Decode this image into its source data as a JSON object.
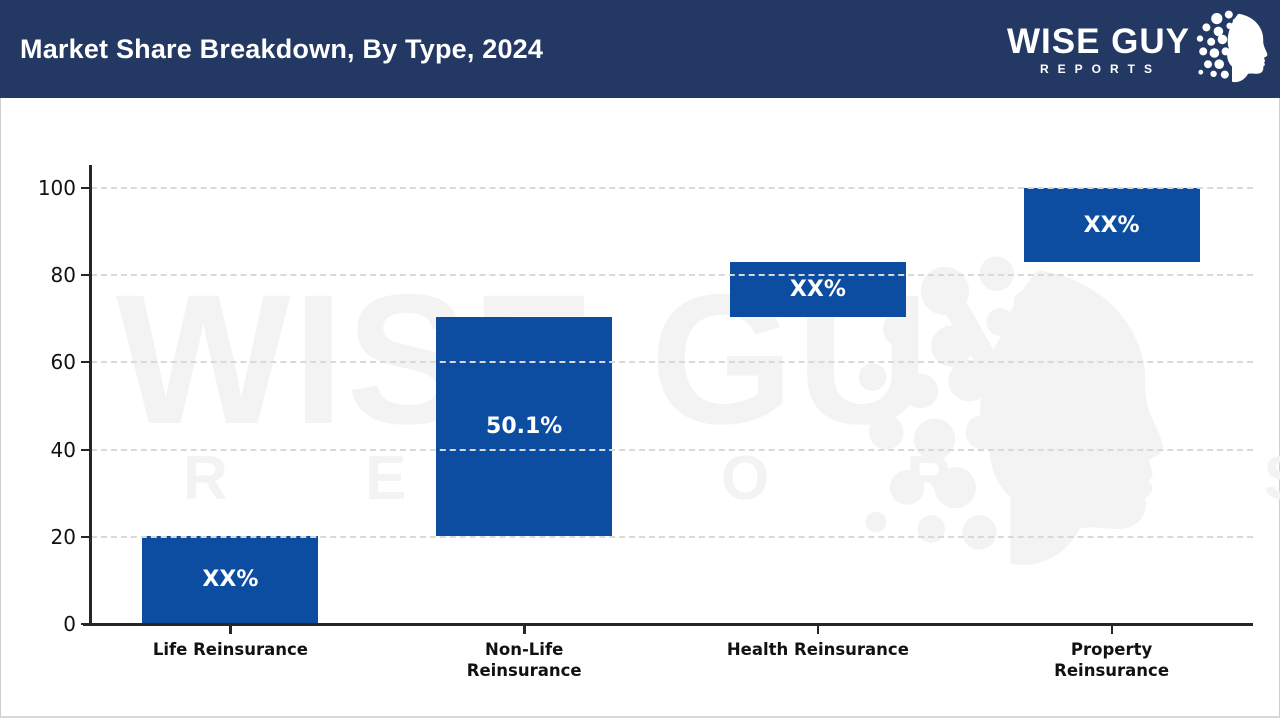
{
  "header": {
    "title": "Market Share Breakdown, By Type, 2024"
  },
  "logo": {
    "name": "WISE GUY",
    "reports": "REPORTS"
  },
  "watermark": {
    "name": "WISE GUY",
    "reports": "R E P O R T S"
  },
  "colors": {
    "header_navy": "#233964",
    "bar_blue": "#0c4da2",
    "grid_gray": "#d9d9d9",
    "axis_dark": "#262626",
    "watermark_gray": "#f3f3f3",
    "bar_label_white": "#ffffff"
  },
  "chart_data": {
    "type": "bar",
    "variant": "stacked-waterfall",
    "title": "Market Share Breakdown, By Type, 2024",
    "categories": [
      "Life Reinsurance",
      "Non-Life Reinsurance",
      "Health Reinsurance",
      "Property Reinsurance"
    ],
    "category_label_lines": [
      [
        "Life Reinsurance"
      ],
      [
        "Non-Life",
        "Reinsurance"
      ],
      [
        "Health Reinsurance"
      ],
      [
        "Property",
        "Reinsurance"
      ]
    ],
    "segments": [
      {
        "category": "Life Reinsurance",
        "start": 0,
        "end": 20.2,
        "label": "XX%"
      },
      {
        "category": "Non-Life Reinsurance",
        "start": 20.2,
        "end": 70.3,
        "label": "50.1%"
      },
      {
        "category": "Health Reinsurance",
        "start": 70.3,
        "end": 83.0,
        "label": "XX%"
      },
      {
        "category": "Property Reinsurance",
        "start": 83.0,
        "end": 100.0,
        "label": "XX%"
      }
    ],
    "xlabel": "",
    "ylabel": "",
    "yticks": [
      0,
      20,
      40,
      60,
      80,
      100
    ],
    "ylim": [
      0,
      105
    ],
    "grid": "horizontal-dashed",
    "legend": "none",
    "unit": "percent"
  }
}
